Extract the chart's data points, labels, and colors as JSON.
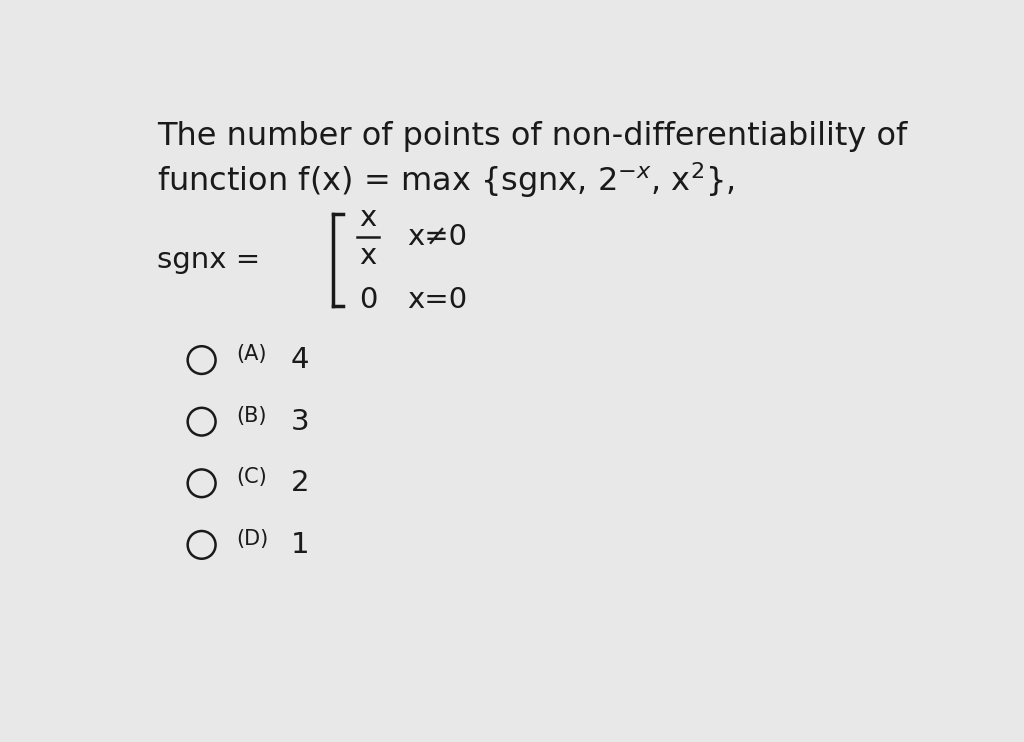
{
  "background_color": "#e8e8e8",
  "text_color": "#1a1a1a",
  "title_line1": "The number of points of non-differentiability of",
  "title_line2": "function f(x) = max {sgnx, 2$^{-x}$, x$^{2}$},",
  "sgn_label": "sgnx =",
  "sgn_case1_num": "x",
  "sgn_case1_den": "x",
  "sgn_case1_cond": "x≠0",
  "sgn_case2_val": "0",
  "sgn_case2_cond": "x=0",
  "options": [
    {
      "label": "(A)",
      "value": "4"
    },
    {
      "label": "(B)",
      "value": "3"
    },
    {
      "label": "(C)",
      "value": "2"
    },
    {
      "label": "(D)",
      "value": "1"
    }
  ],
  "font_size_title": 23,
  "font_size_body": 21,
  "font_size_options": 21,
  "fig_width": 10.24,
  "fig_height": 7.42
}
